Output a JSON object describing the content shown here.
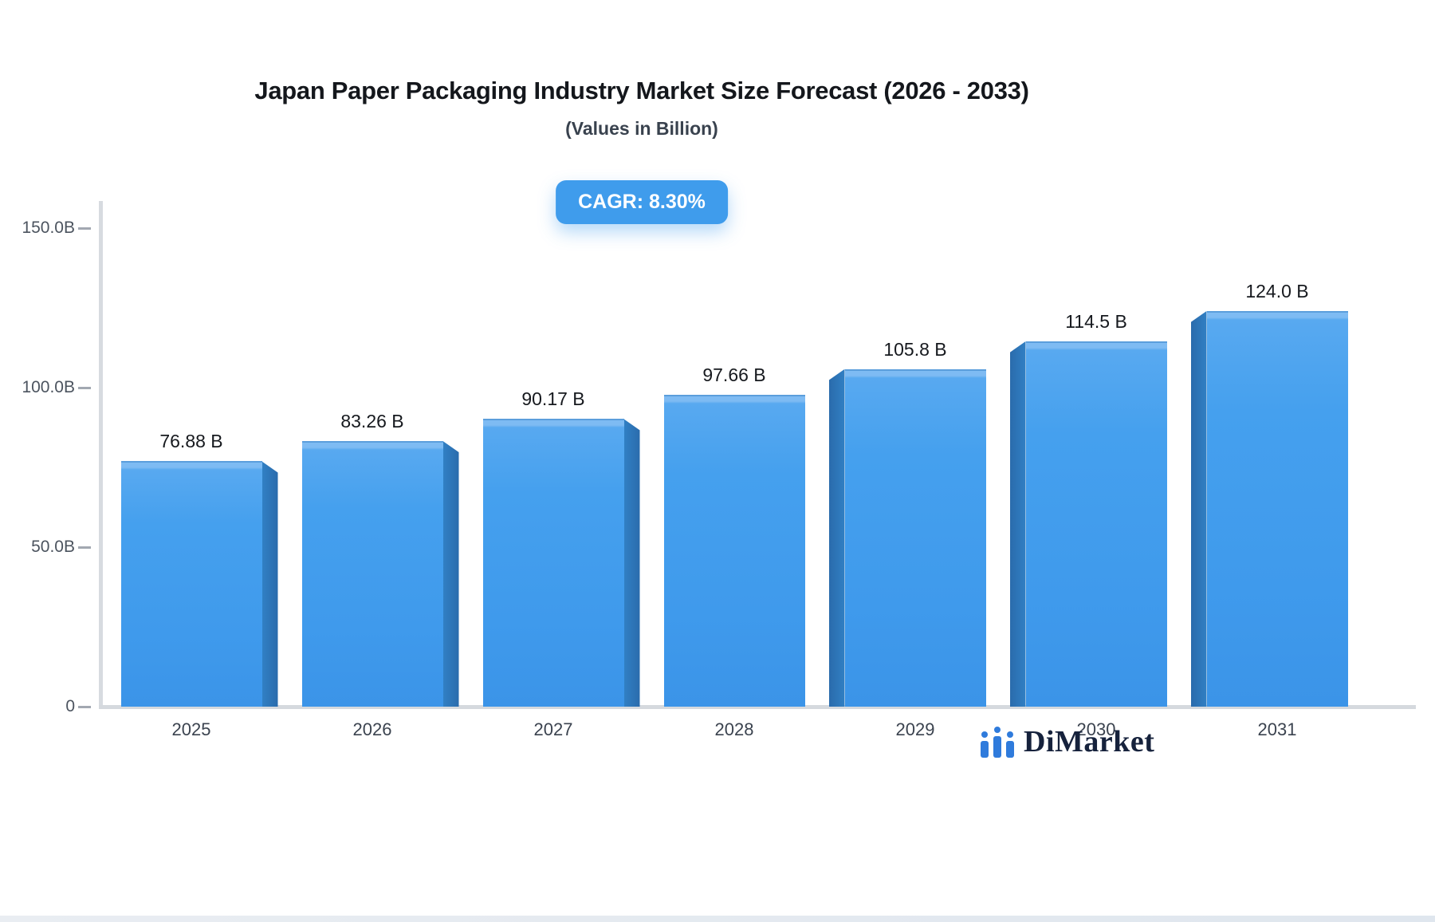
{
  "header": {
    "title": "Japan Paper Packaging Industry Market Size Forecast (2026 - 2033)",
    "subtitle": "(Values in Billion)",
    "badge_label": "CAGR: 8.30%"
  },
  "chart_data": {
    "type": "bar",
    "title": "Japan Paper Packaging Industry Market Size Forecast (2026 - 2033)",
    "subtitle": "(Values in Billion)",
    "cagr_percent": "8.30%",
    "categories": [
      "2025",
      "2026",
      "2027",
      "2028",
      "2029",
      "2030",
      "2031"
    ],
    "values": [
      76.88,
      83.26,
      90.17,
      97.66,
      105.8,
      114.5,
      124.0
    ],
    "value_labels": [
      "76.88 B",
      "83.26 B",
      "90.17 B",
      "97.66 B",
      "105.8 B",
      "114.5 B",
      "124.0 B"
    ],
    "ylim": [
      0,
      150
    ],
    "yticks": [
      {
        "value": 0,
        "label": "0"
      },
      {
        "value": 50,
        "label": "50.0B"
      },
      {
        "value": 100,
        "label": "100.0B"
      },
      {
        "value": 150,
        "label": "150.0B"
      }
    ],
    "grid": false,
    "legend": "none",
    "bar_face_color": "#3f9aec",
    "bar_side_color": "#2d72b5",
    "units": "Billion"
  },
  "branding": {
    "name": "DiMarket",
    "icon": "bar-chart-dots-icon",
    "icon_color": "#2f7bdc",
    "text_color": "#16223c"
  },
  "colors": {
    "badge_bg": "#3f9cec",
    "axis_line": "#d7dbe0",
    "tick_text": "#4c545f",
    "title_text": "#14171c"
  }
}
